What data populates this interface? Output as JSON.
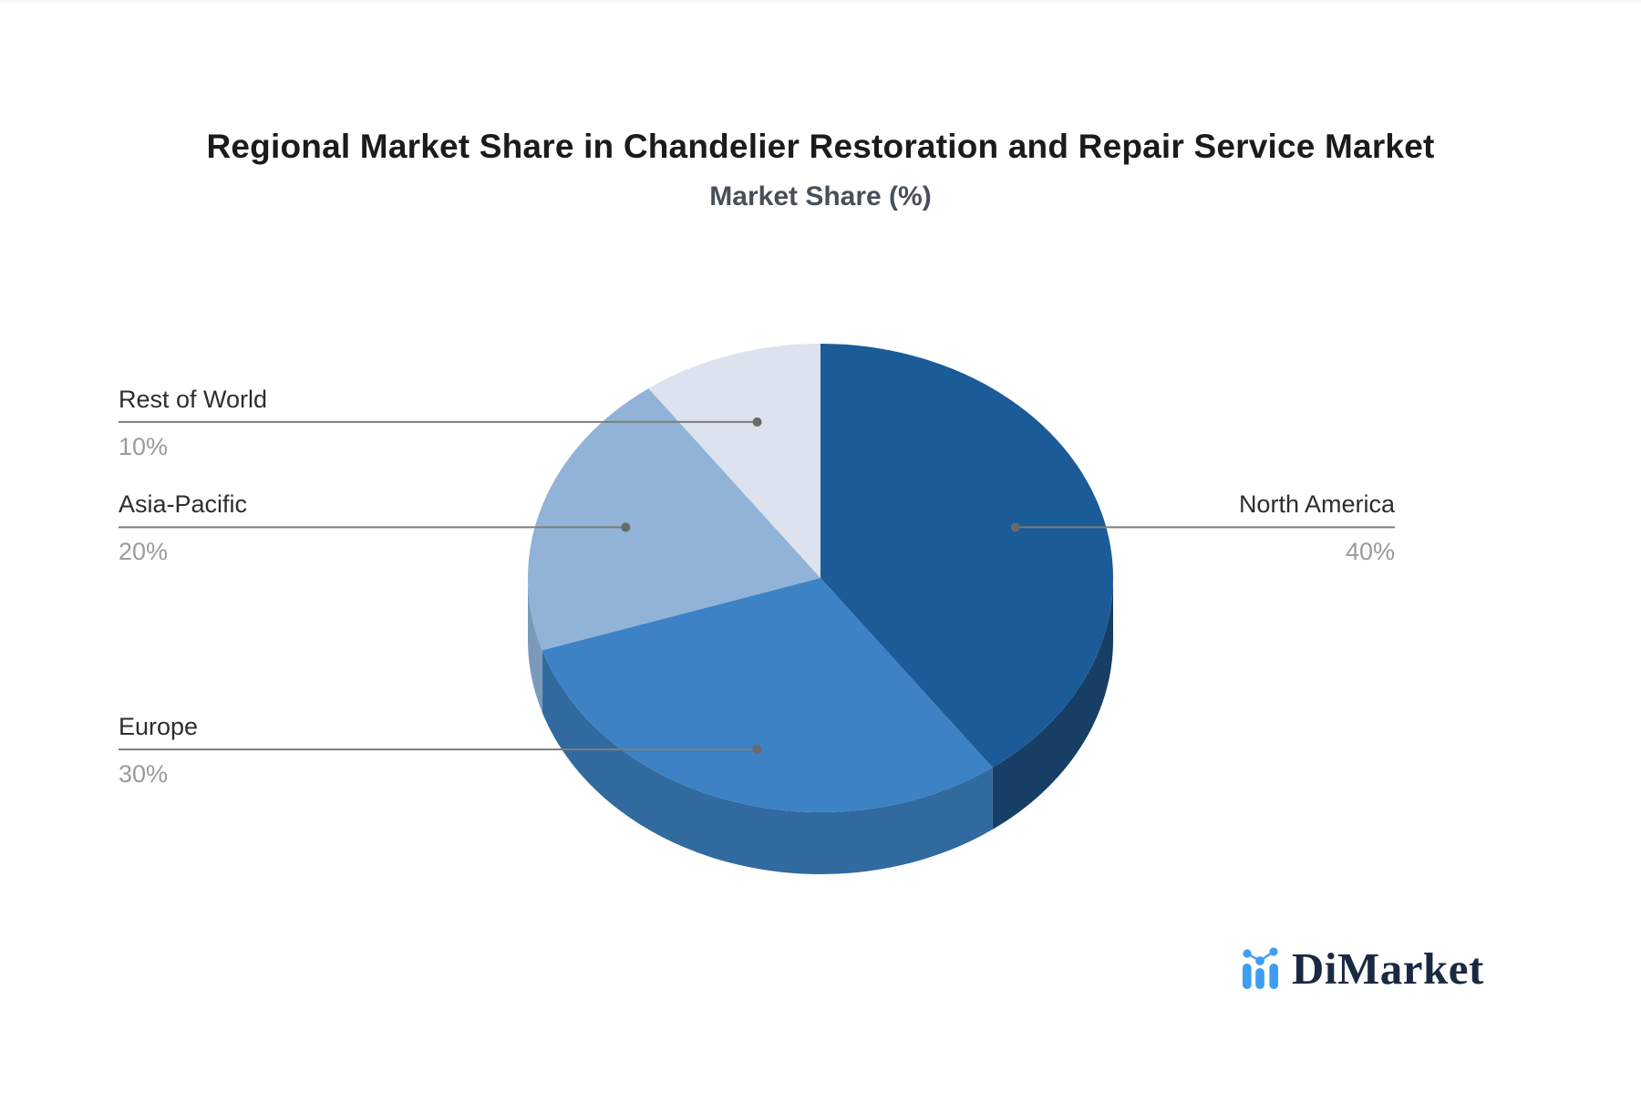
{
  "header": {
    "title": "Regional Market Share in Chandelier Restoration and Repair Service Market",
    "subtitle": "Market Share (%)"
  },
  "chart_data": {
    "type": "pie",
    "title": "Regional Market Share in Chandelier Restoration and Repair Service Market",
    "subtitle": "Market Share (%)",
    "unit": "%",
    "style": "3d-depth-pie",
    "start_angle_deg": 0,
    "direction": "clockwise",
    "slices": [
      {
        "label": "North America",
        "value": 40,
        "display": "40%",
        "color": "#1b5b97",
        "rim_color": "#173f66",
        "label_side": "right"
      },
      {
        "label": "Europe",
        "value": 30,
        "display": "30%",
        "color": "#3c82c5",
        "rim_color": "#316a9f",
        "label_side": "left"
      },
      {
        "label": "Asia-Pacific",
        "value": 20,
        "display": "20%",
        "color": "#90b3d7",
        "rim_color": "#7b9aba",
        "label_side": "left"
      },
      {
        "label": "Rest of World",
        "value": 10,
        "display": "10%",
        "color": "#dce3ee",
        "rim_color": "#c9d2e0",
        "label_side": "left"
      }
    ],
    "leader": {
      "line_color": "#7d7d7d",
      "dot_color": "#696969"
    },
    "label_text_color": "#2d2d2d",
    "value_text_color": "#9b9b9b",
    "legend": "none",
    "grid": "off"
  },
  "logo": {
    "text": "DiMarket",
    "icon": "bar-line-chart-icon",
    "icon_color": "#3f9df2",
    "text_color": "#1a2942"
  }
}
